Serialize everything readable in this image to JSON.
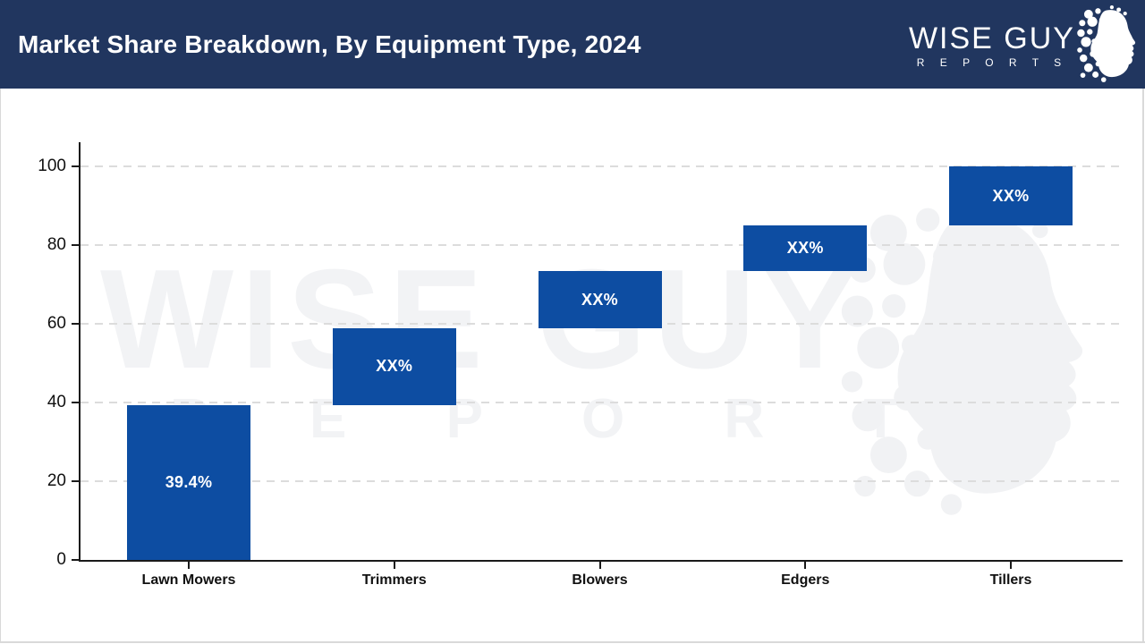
{
  "header": {
    "title": "Market Share Breakdown, By Equipment Type, 2024",
    "logo_line1": "WISE GUY",
    "logo_line2": "R E P O R T S"
  },
  "watermark": {
    "line1": "WISE GUY",
    "line2": "R E P O R T S"
  },
  "chart_data": {
    "type": "bar",
    "subtype": "waterfall",
    "title": "Market Share Breakdown, By Equipment Type, 2024",
    "categories": [
      "Lawn Mowers",
      "Trimmers",
      "Blowers",
      "Edgers",
      "Tillers"
    ],
    "segments": [
      {
        "category": "Lawn Mowers",
        "start": 0,
        "end": 39.4,
        "label": "39.4%"
      },
      {
        "category": "Trimmers",
        "start": 39.4,
        "end": 58.8,
        "label": "XX%"
      },
      {
        "category": "Blowers",
        "start": 58.8,
        "end": 73.3,
        "label": "XX%"
      },
      {
        "category": "Edgers",
        "start": 73.3,
        "end": 84.9,
        "label": "XX%"
      },
      {
        "category": "Tillers",
        "start": 84.9,
        "end": 100,
        "label": "XX%"
      }
    ],
    "xlabel": "",
    "ylabel": "",
    "ylim": [
      0,
      105
    ],
    "yticks": [
      0,
      20,
      40,
      60,
      80,
      100
    ],
    "grid": "horizontal-dashed",
    "legend": "none",
    "bar_color": "#0D4DA2",
    "bar_label_color": "#FFFFFF"
  },
  "colors": {
    "header_bg": "#21365F",
    "title_text": "#FFFFFF",
    "axis": "#1A1A1A",
    "grid": "#DCDCDC",
    "watermark": "#F2F3F5",
    "frame": "#D9D9D9"
  }
}
